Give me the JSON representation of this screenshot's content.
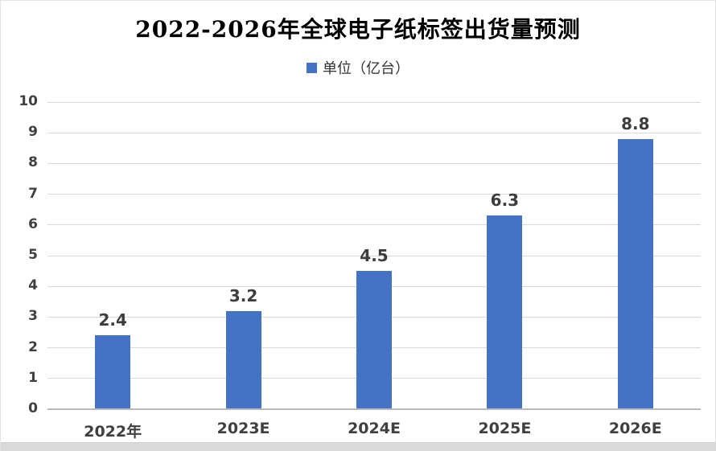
{
  "chart_data": {
    "type": "bar",
    "title": "2022-2026年全球电子纸标签出货量预测",
    "legend": {
      "label": "单位（亿台）",
      "marker_color": "#4472C4",
      "position": "top-center"
    },
    "categories": [
      "2022年",
      "2023E",
      "2024E",
      "2025E",
      "2026E"
    ],
    "values": [
      2.4,
      3.2,
      4.5,
      6.3,
      8.8
    ],
    "value_labels": [
      "2.4",
      "3.2",
      "4.5",
      "6.3",
      "8.8"
    ],
    "bar_color": "#4472C4",
    "xlabel": "",
    "ylabel": "",
    "ylim": [
      0,
      10
    ],
    "yticks": [
      0,
      1,
      2,
      3,
      4,
      5,
      6,
      7,
      8,
      9,
      10
    ],
    "grid": true,
    "gridline_color": "#d9d9d9",
    "axis_line_color": "#b9b9b9",
    "tick_label_color": "#404040",
    "title_color": "#000000"
  }
}
